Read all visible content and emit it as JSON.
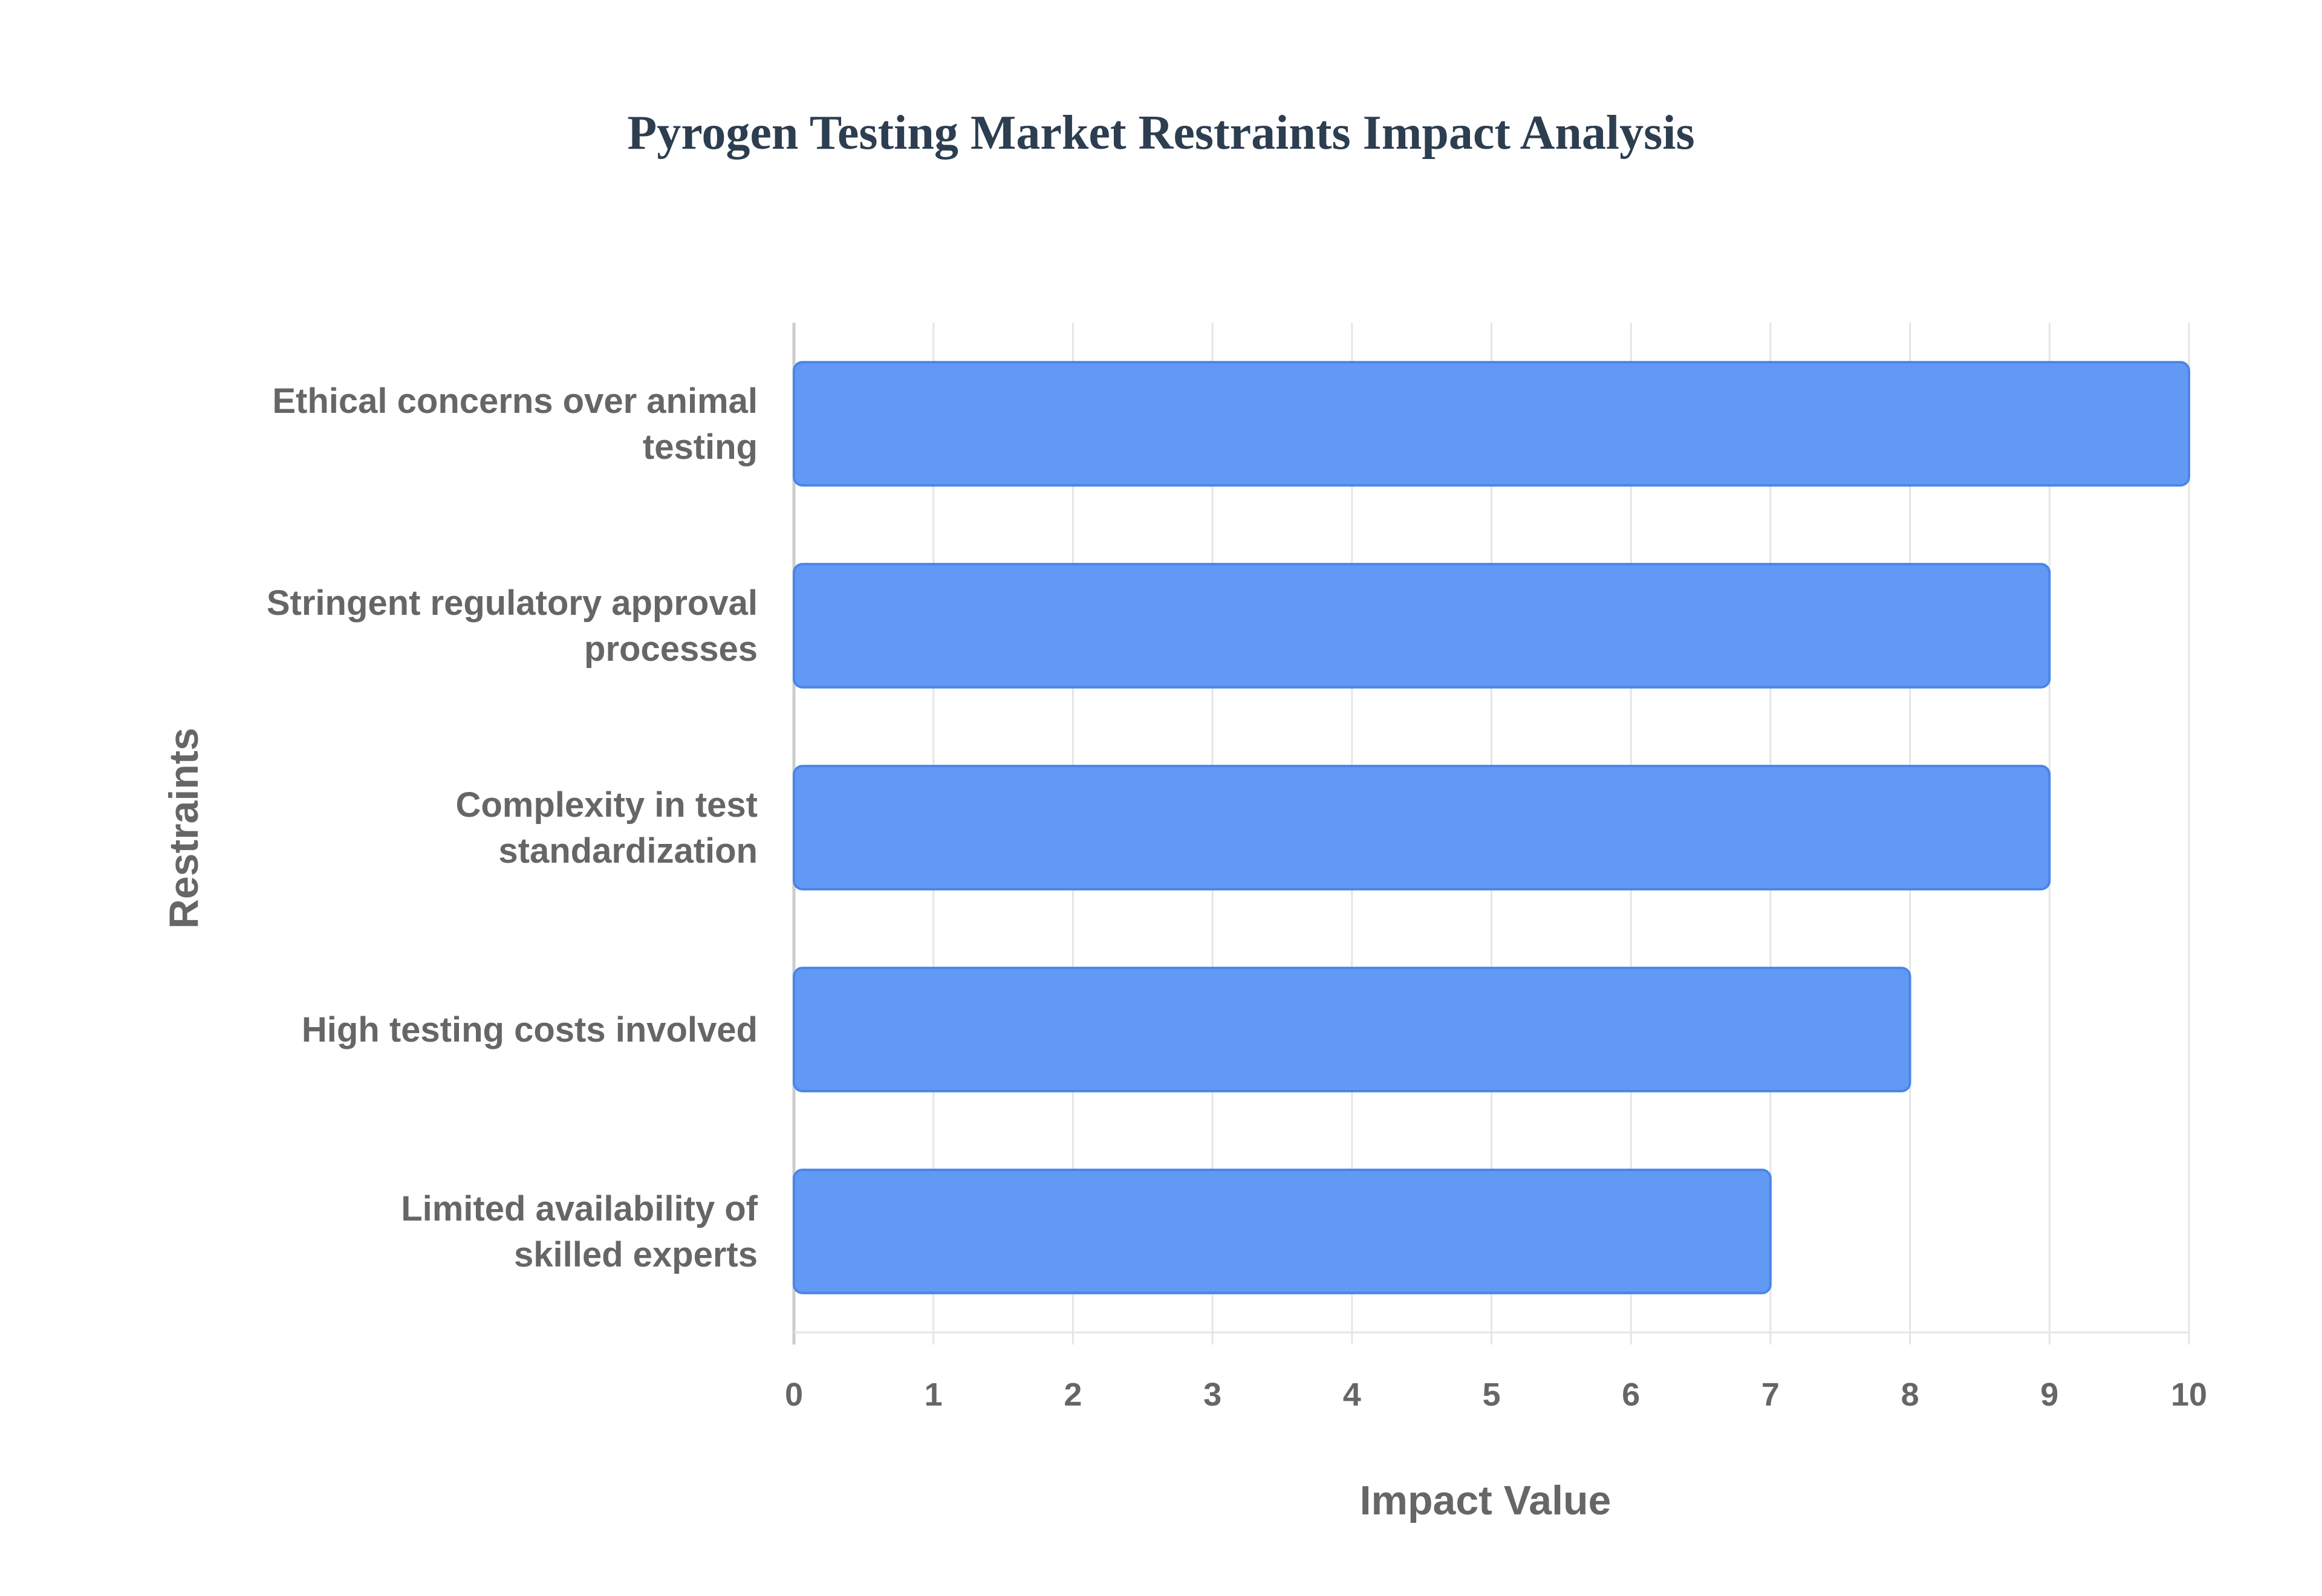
{
  "chart_data": {
    "type": "bar",
    "orientation": "horizontal",
    "title": "Pyrogen Testing Market Restraints Impact Analysis",
    "xlabel": "Impact Value",
    "ylabel": "Restraints",
    "categories": [
      [
        "Ethical concerns over animal",
        "testing"
      ],
      [
        "Stringent regulatory approval",
        "processes"
      ],
      [
        "Complexity in test",
        "standardization"
      ],
      [
        "High testing costs involved"
      ],
      [
        "Limited availability of",
        "skilled experts"
      ]
    ],
    "values": [
      10,
      9,
      9,
      8,
      7
    ],
    "xlim": [
      0,
      10
    ],
    "xticks": [
      "0",
      "1",
      "2",
      "3",
      "4",
      "5",
      "6",
      "7",
      "8",
      "9",
      "10"
    ],
    "grid": true,
    "legend": "none",
    "colors": {
      "bar_fill": "#6299f5",
      "bar_border": "#4a86e8",
      "title": "#2c3e50",
      "text": "#666666",
      "grid": "#e5e5e5"
    }
  }
}
